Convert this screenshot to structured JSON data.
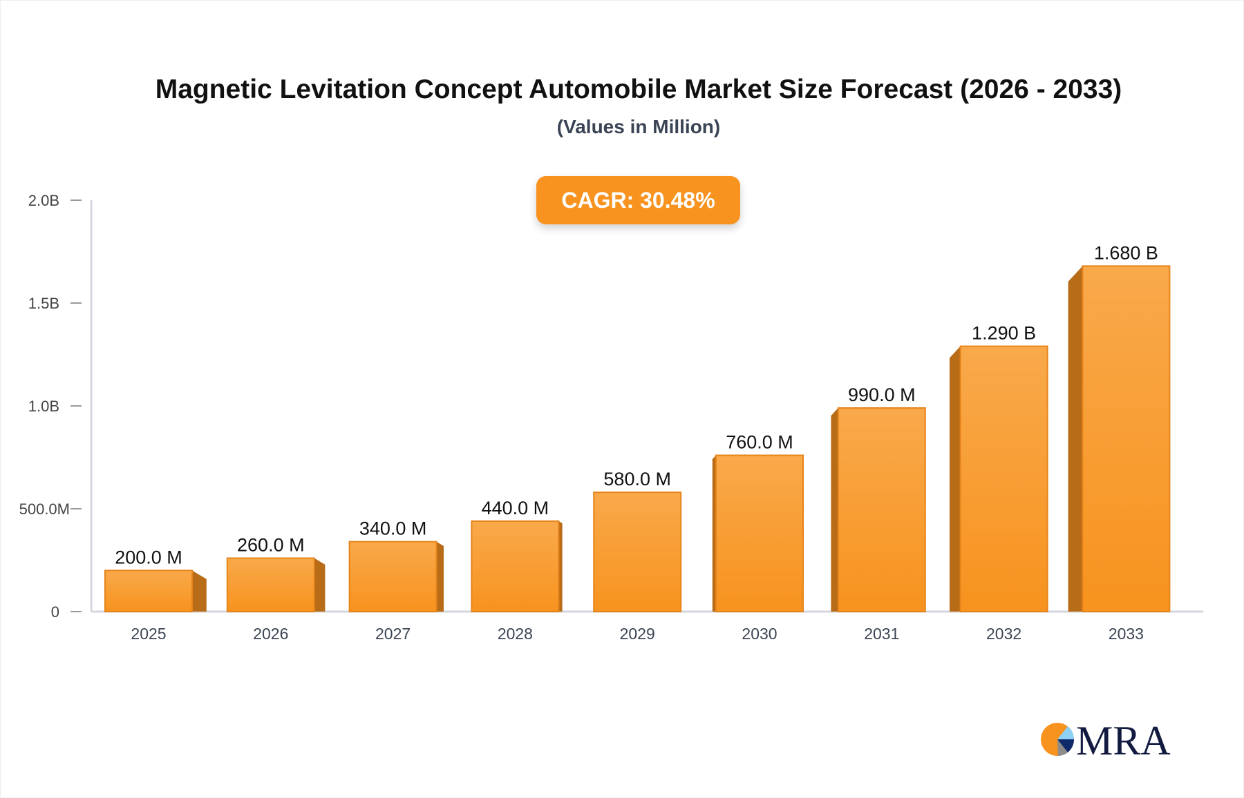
{
  "chart_data": {
    "type": "bar",
    "title": "Magnetic Levitation Concept Automobile Market Size Forecast (2026 - 2033)",
    "subtitle": "(Values in Million)",
    "categories": [
      "2025",
      "2026",
      "2027",
      "2028",
      "2029",
      "2030",
      "2031",
      "2032",
      "2033"
    ],
    "values": [
      200,
      260,
      340,
      440,
      580,
      760,
      990,
      1290,
      1680
    ],
    "value_labels": [
      "200.0 M",
      "260.0 M",
      "340.0 M",
      "440.0 M",
      "580.0 M",
      "760.0 M",
      "990.0 M",
      "1.290 B",
      "1.680 B"
    ],
    "y_ticks": [
      0,
      500,
      1000,
      1500,
      2000
    ],
    "y_tick_labels": [
      "0",
      "500.0M",
      "1.0B",
      "1.5B",
      "2.0B"
    ],
    "ylim": [
      0,
      2000
    ],
    "xlabel": "",
    "ylabel": "",
    "grid": false,
    "annotation": "CAGR: 30.48%",
    "colors": {
      "bar_front_top": "#f9a94b",
      "bar_front_bottom": "#f7931e",
      "bar_side": "#b86c18",
      "bar_edge": "#e6841a",
      "accent": "#f7931e",
      "axis": "#d5d7de"
    }
  },
  "logo": {
    "text": "MRA",
    "colors": {
      "orange": "#f7931e",
      "light_blue": "#8fd0f5",
      "navy": "#0f2a6b",
      "gray": "#8c8c8c",
      "text": "#121a3f"
    }
  }
}
